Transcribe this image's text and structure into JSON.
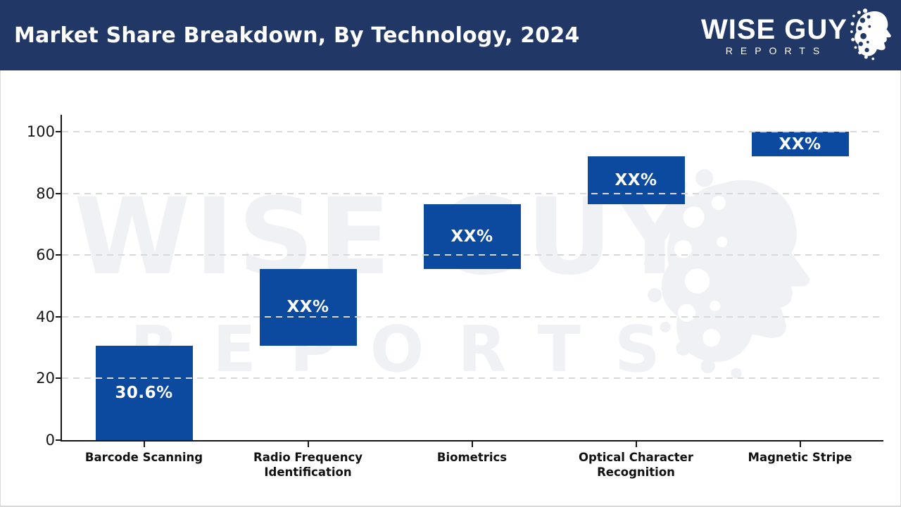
{
  "header": {
    "title": "Market Share Breakdown, By Technology, 2024",
    "logo": {
      "wordmark": "WISE GUY",
      "sub_wordmark": "REPORTS",
      "face_icon": "dotted-face-profile-icon"
    }
  },
  "watermark": {
    "line1": "WISE GUY",
    "line2": "REPORTS",
    "face_icon": "dotted-face-profile-watermark"
  },
  "colors": {
    "header_bg": "#213766",
    "bar": "#0b4a9e",
    "bar_label": "#ffffff",
    "grid": "#d8d8d8",
    "axis": "#151515",
    "watermark": "#f0f1f4"
  },
  "chart_data": {
    "type": "bar",
    "subtype": "waterfall",
    "title": "Market Share Breakdown, By Technology, 2024",
    "xlabel": "",
    "ylabel": "",
    "ylim": [
      0,
      100
    ],
    "yticks": [
      0,
      20,
      40,
      60,
      80,
      100
    ],
    "grid": "horizontal-dashed",
    "legend": "none",
    "categories": [
      "Barcode Scanning",
      "Radio Frequency Identification",
      "Biometrics",
      "Optical Character Recognition",
      "Magnetic Stripe"
    ],
    "segments": [
      {
        "category": "Barcode Scanning",
        "label_lines": [
          "Barcode Scanning"
        ],
        "start": 0,
        "end": 30.6,
        "value_label": "30.6%"
      },
      {
        "category": "Radio Frequency Identification",
        "label_lines": [
          "Radio Frequency",
          "Identification"
        ],
        "start": 30.6,
        "end": 55.5,
        "value_label": "XX%"
      },
      {
        "category": "Biometrics",
        "label_lines": [
          "Biometrics"
        ],
        "start": 55.5,
        "end": 76.5,
        "value_label": "XX%"
      },
      {
        "category": "Optical Character Recognition",
        "label_lines": [
          "Optical Character",
          "Recognition"
        ],
        "start": 76.5,
        "end": 92,
        "value_label": "XX%"
      },
      {
        "category": "Magnetic Stripe",
        "label_lines": [
          "Magnetic Stripe"
        ],
        "start": 92,
        "end": 100,
        "value_label": "XX%"
      }
    ]
  }
}
